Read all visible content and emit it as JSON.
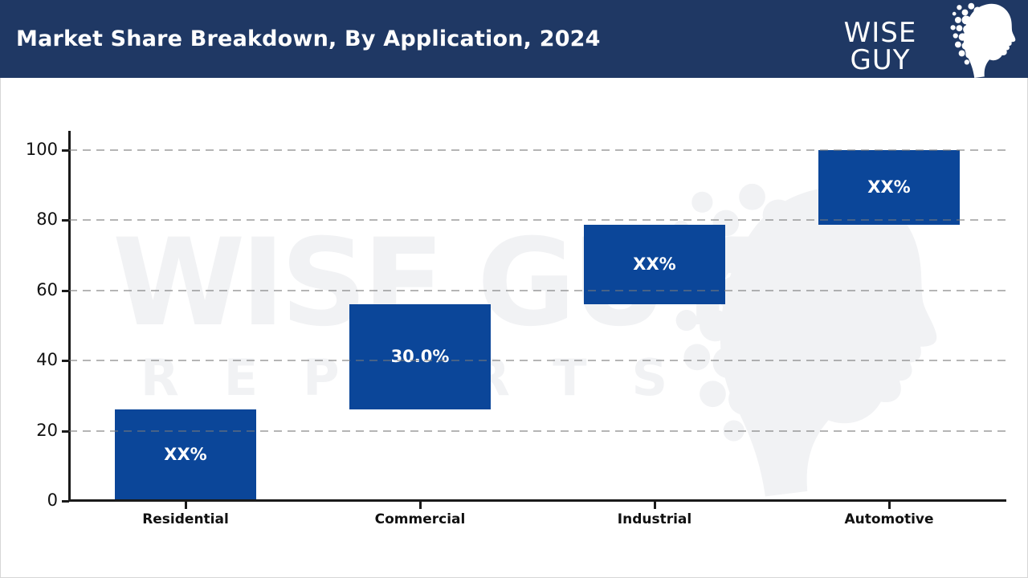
{
  "header": {
    "title": "Market Share Breakdown, By Application, 2024",
    "logo": {
      "line1": "WISE GUY",
      "line2": "REPORTS"
    }
  },
  "watermark": {
    "line1": "WISE GUY",
    "line2": "REPORTS"
  },
  "colors": {
    "header_bg": "#1F3864",
    "bar": "#0B4699",
    "bar_label_text": "#FFFFFF",
    "grid": "rgba(120,120,120,0.55)",
    "axis": "#1A1A1A",
    "watermark": "#F1F2F4"
  },
  "chart_data": {
    "type": "bar",
    "subtype": "floating-waterfall",
    "title": "Market Share Breakdown, By Application, 2024",
    "categories": [
      "Residential",
      "Commercial",
      "Industrial",
      "Automotive"
    ],
    "segments": [
      {
        "category": "Residential",
        "start": 0,
        "end": 26,
        "label": "XX%"
      },
      {
        "category": "Commercial",
        "start": 26,
        "end": 56,
        "label": "30.0%"
      },
      {
        "category": "Industrial",
        "start": 56,
        "end": 78.7,
        "label": "XX%"
      },
      {
        "category": "Automotive",
        "start": 78.7,
        "end": 100,
        "label": "XX%"
      }
    ],
    "xlabel": "",
    "ylabel": "",
    "ylim": [
      0,
      100
    ],
    "yticks": [
      0,
      20,
      40,
      60,
      80,
      100
    ],
    "grid": "horizontal-dashed",
    "legend": "none"
  }
}
